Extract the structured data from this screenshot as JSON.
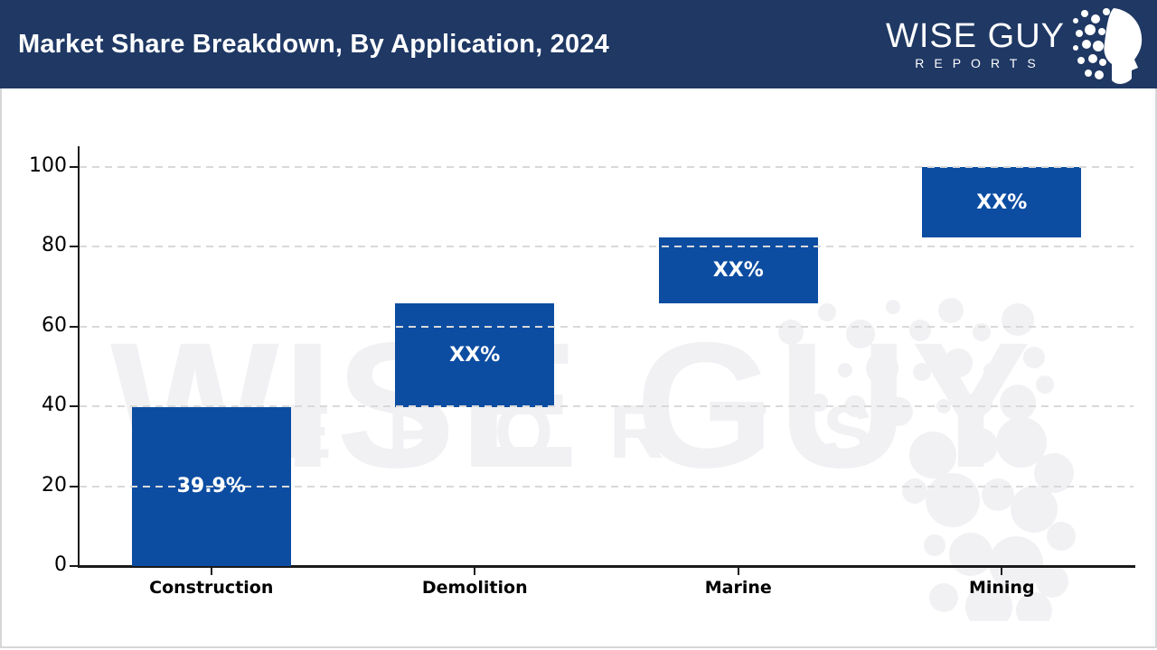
{
  "header": {
    "title": "Market Share Breakdown, By Application, 2024",
    "logo": {
      "wordmark": "WISE GUY",
      "subtitle": "REPORTS"
    }
  },
  "watermark": {
    "line1": "WISE GUY",
    "line2": "REPORTS"
  },
  "chart_data": {
    "type": "bar",
    "variant": "waterfall",
    "title": "Market Share Breakdown, By Application, 2024",
    "categories": [
      "Construction",
      "Demolition",
      "Marine",
      "Mining"
    ],
    "values": [
      39.9,
      26.0,
      16.5,
      17.5
    ],
    "segments": [
      {
        "category": "Construction",
        "start": 0,
        "end": 39.9,
        "label": "39.9%"
      },
      {
        "category": "Demolition",
        "start": 39.9,
        "end": 65.9,
        "label": "XX%"
      },
      {
        "category": "Marine",
        "start": 65.9,
        "end": 82.4,
        "label": "XX%"
      },
      {
        "category": "Mining",
        "start": 82.4,
        "end": 99.9,
        "label": "XX%"
      }
    ],
    "xlabel": "",
    "ylabel": "",
    "y_ticks": [
      0,
      20,
      40,
      60,
      80,
      100
    ],
    "ylim": [
      0,
      105
    ],
    "grid": "horizontal-dashed",
    "legend": "none",
    "bar_color": "#0C4DA2",
    "bar_label_color": "#FFFFFF",
    "axis_color": "#1A1A1A",
    "grid_color": "#D9D9D9"
  },
  "colors": {
    "header_bg": "#1F3864",
    "page_bg": "#FFFFFF",
    "watermark": "#F1F1F4",
    "border": "#D6D6D6"
  }
}
